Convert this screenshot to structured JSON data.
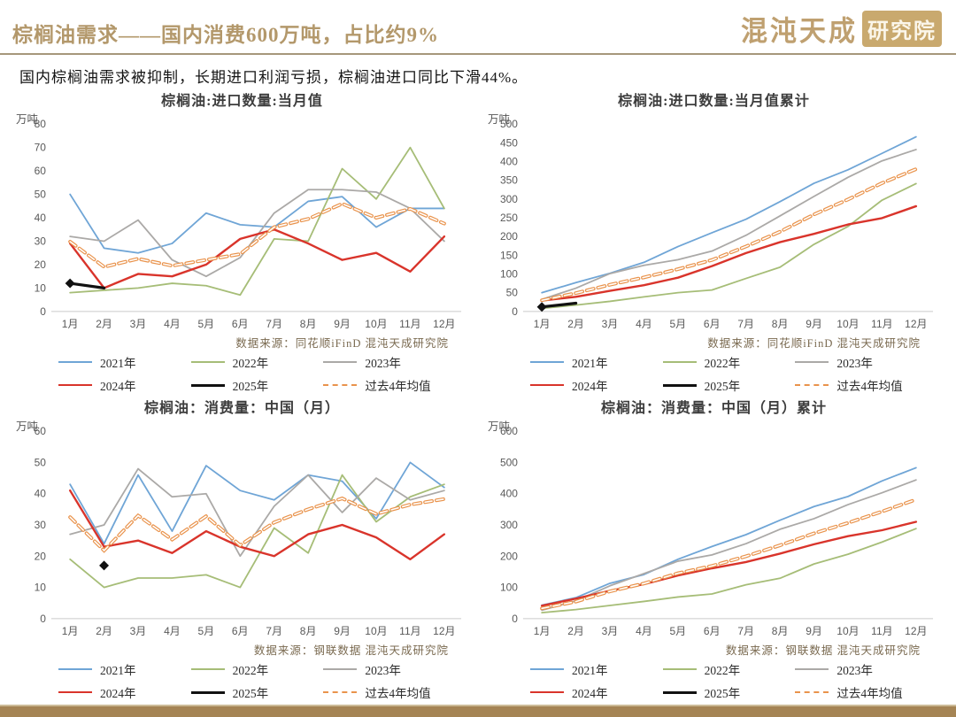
{
  "page": {
    "title": "棕榈油需求——国内消费600万吨，占比约9%",
    "subtitle": "国内棕榈油需求被抑制，长期进口利润亏损，棕榈油进口同比下滑44%。",
    "logo_text": "混沌天成",
    "logo_seal_text": "研究院"
  },
  "colors": {
    "brand_gold": "#B3986B",
    "footer_bar": "#A58454",
    "axis_line": "#D9D9D9",
    "tick_text": "#595959",
    "series_2021": "#6FA5D6",
    "series_2022": "#A6BD77",
    "series_2023": "#ABA9A7",
    "series_2024": "#D9342B",
    "series_2025": "#111111",
    "series_avg": "#E9934C"
  },
  "legend": [
    {
      "label": "2021年",
      "color": "#6FA5D6",
      "dash": false,
      "thick": false
    },
    {
      "label": "2022年",
      "color": "#A6BD77",
      "dash": false,
      "thick": false
    },
    {
      "label": "2023年",
      "color": "#ABA9A7",
      "dash": false,
      "thick": false
    },
    {
      "label": "2024年",
      "color": "#D9342B",
      "dash": false,
      "thick": false
    },
    {
      "label": "2025年",
      "color": "#111111",
      "dash": false,
      "thick": true
    },
    {
      "label": "过去4年均值",
      "color": "#E9934C",
      "dash": true,
      "thick": false
    }
  ],
  "chart_data": [
    {
      "type": "line",
      "title": "棕榈油:进口数量:当月值",
      "unit": "万吨",
      "ylim": [
        0,
        80
      ],
      "ystep": 10,
      "grid": false,
      "legend_position": "bottom",
      "categories": [
        "1月",
        "2月",
        "3月",
        "4月",
        "5月",
        "6月",
        "7月",
        "8月",
        "9月",
        "10月",
        "11月",
        "12月"
      ],
      "source": "数据来源：同花顺iFinD  混沌天成研究院",
      "series": [
        {
          "name": "2021年",
          "color": "#6FA5D6",
          "width": 1.8,
          "values": [
            50,
            27,
            25,
            29,
            42,
            37,
            36,
            47,
            49,
            36,
            44,
            44
          ]
        },
        {
          "name": "2022年",
          "color": "#A6BD77",
          "width": 1.8,
          "values": [
            8,
            9,
            10,
            12,
            11,
            7,
            31,
            30,
            61,
            48,
            70,
            44
          ]
        },
        {
          "name": "2023年",
          "color": "#ABA9A7",
          "width": 1.8,
          "values": [
            32,
            30,
            39,
            22,
            15,
            23,
            42,
            52,
            52,
            51,
            44,
            30
          ]
        },
        {
          "name": "2024年",
          "color": "#D9342B",
          "width": 2.4,
          "values": [
            29,
            10,
            16,
            15,
            20,
            31,
            35,
            29,
            22,
            25,
            17,
            32
          ]
        },
        {
          "name": "2025年",
          "color": "#111111",
          "width": 3.2,
          "marker": "diamond",
          "values": [
            12,
            10,
            null,
            null,
            null,
            null,
            null,
            null,
            null,
            null,
            null,
            null
          ]
        },
        {
          "name": "过去4年均值",
          "color": "#E9934C",
          "width": 2.5,
          "dash": true,
          "values": [
            29.8,
            19,
            22.5,
            19.5,
            22,
            24.5,
            36,
            39.5,
            46,
            40,
            43.8,
            37.5
          ]
        }
      ]
    },
    {
      "type": "line",
      "title": "棕榈油:进口数量:当月值累计",
      "unit": "万吨",
      "ylim": [
        0,
        500
      ],
      "ystep": 50,
      "grid": false,
      "legend_position": "bottom",
      "categories": [
        "1月",
        "2月",
        "3月",
        "4月",
        "5月",
        "6月",
        "7月",
        "8月",
        "9月",
        "10月",
        "11月",
        "12月"
      ],
      "source": "数据来源：同花顺iFinD  混沌天成研究院",
      "series": [
        {
          "name": "2021年",
          "color": "#6FA5D6",
          "width": 1.8,
          "values": [
            50,
            77,
            102,
            131,
            173,
            210,
            246,
            293,
            342,
            378,
            422,
            466
          ]
        },
        {
          "name": "2022年",
          "color": "#A6BD77",
          "width": 1.8,
          "values": [
            8,
            17,
            27,
            39,
            50,
            57,
            88,
            118,
            179,
            227,
            297,
            341
          ]
        },
        {
          "name": "2023年",
          "color": "#ABA9A7",
          "width": 1.8,
          "values": [
            32,
            62,
            101,
            123,
            138,
            161,
            203,
            255,
            307,
            358,
            402,
            432
          ]
        },
        {
          "name": "2024年",
          "color": "#D9342B",
          "width": 2.4,
          "values": [
            29,
            39,
            55,
            70,
            90,
            121,
            156,
            185,
            207,
            232,
            249,
            281
          ]
        },
        {
          "name": "2025年",
          "color": "#111111",
          "width": 3.2,
          "marker": "diamond",
          "values": [
            12,
            22,
            null,
            null,
            null,
            null,
            null,
            null,
            null,
            null,
            null,
            null
          ]
        },
        {
          "name": "过去4年均值",
          "color": "#E9934C",
          "width": 2.5,
          "dash": true,
          "values": [
            29.8,
            48.8,
            71.3,
            90.8,
            112.8,
            137.3,
            173.3,
            212.8,
            258.8,
            298.8,
            342.5,
            380
          ]
        }
      ]
    },
    {
      "type": "line",
      "title": "棕榈油：消费量：中国（月）",
      "unit": "万吨",
      "ylim": [
        0,
        60
      ],
      "ystep": 10,
      "grid": false,
      "legend_position": "bottom",
      "categories": [
        "1月",
        "2月",
        "3月",
        "4月",
        "5月",
        "6月",
        "7月",
        "8月",
        "9月",
        "10月",
        "11月",
        "12月"
      ],
      "source": "数据来源：钢联数据  混沌天成研究院",
      "series": [
        {
          "name": "2021年",
          "color": "#6FA5D6",
          "width": 1.8,
          "values": [
            43,
            24,
            46,
            28,
            49,
            41,
            38,
            46,
            44,
            32,
            50,
            42
          ]
        },
        {
          "name": "2022年",
          "color": "#A6BD77",
          "width": 1.8,
          "values": [
            19,
            10,
            13,
            13,
            14,
            10,
            29,
            21,
            46,
            31,
            39,
            43
          ]
        },
        {
          "name": "2023年",
          "color": "#ABA9A7",
          "width": 1.8,
          "values": [
            27,
            30,
            48,
            39,
            40,
            20,
            36,
            46,
            34,
            45,
            38,
            41
          ]
        },
        {
          "name": "2024年",
          "color": "#D9342B",
          "width": 2.4,
          "values": [
            41,
            23,
            25,
            21,
            28,
            23,
            20,
            27,
            30,
            26,
            19,
            27
          ]
        },
        {
          "name": "2025年",
          "color": "#111111",
          "width": 3.2,
          "marker": "diamond",
          "values": [
            null,
            17,
            null,
            null,
            null,
            null,
            null,
            null,
            null,
            null,
            null,
            null
          ]
        },
        {
          "name": "过去4年均值",
          "color": "#E9934C",
          "width": 2.5,
          "dash": true,
          "values": [
            32.5,
            21.8,
            33,
            25.3,
            32.8,
            23.5,
            30.8,
            35,
            38.5,
            33.5,
            36.5,
            38.3
          ]
        }
      ]
    },
    {
      "type": "line",
      "title": "棕榈油：消费量：中国（月）累计",
      "unit": "万吨",
      "ylim": [
        0,
        600
      ],
      "ystep": 100,
      "grid": false,
      "legend_position": "bottom",
      "categories": [
        "1月",
        "2月",
        "3月",
        "4月",
        "5月",
        "6月",
        "7月",
        "8月",
        "9月",
        "10月",
        "11月",
        "12月"
      ],
      "source": "数据来源：钢联数据  混沌天成研究院",
      "series": [
        {
          "name": "2021年",
          "color": "#6FA5D6",
          "width": 1.8,
          "values": [
            43,
            67,
            113,
            141,
            190,
            231,
            269,
            315,
            359,
            391,
            441,
            483
          ]
        },
        {
          "name": "2022年",
          "color": "#A6BD77",
          "width": 1.8,
          "values": [
            19,
            29,
            42,
            55,
            69,
            79,
            108,
            129,
            175,
            206,
            245,
            288
          ]
        },
        {
          "name": "2023年",
          "color": "#ABA9A7",
          "width": 1.8,
          "values": [
            27,
            57,
            105,
            144,
            184,
            204,
            240,
            286,
            320,
            365,
            403,
            444
          ]
        },
        {
          "name": "2024年",
          "color": "#D9342B",
          "width": 2.4,
          "values": [
            41,
            64,
            89,
            110,
            138,
            161,
            181,
            208,
            238,
            264,
            283,
            310
          ]
        },
        {
          "name": "2025年",
          "color": "#111111",
          "width": 3.2,
          "marker": "diamond",
          "values": []
        },
        {
          "name": "过去4年均值",
          "color": "#E9934C",
          "width": 2.5,
          "dash": true,
          "values": [
            32.5,
            54.3,
            87.3,
            112.5,
            145.3,
            168.8,
            199.5,
            234.5,
            273,
            306.5,
            343,
            381.3
          ]
        }
      ]
    }
  ]
}
